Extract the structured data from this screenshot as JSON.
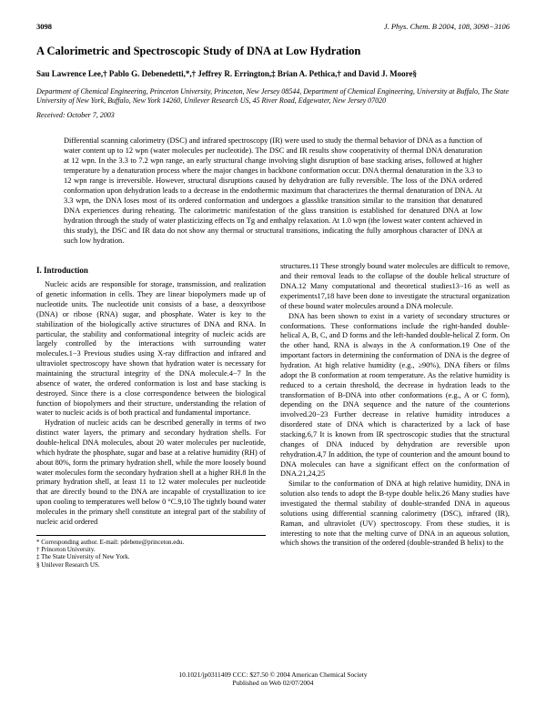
{
  "header": {
    "page_number": "3098",
    "journal_ref": "J. Phys. Chem. B 2004, 108, 3098−3106"
  },
  "title": "A Calorimetric and Spectroscopic Study of DNA at Low Hydration",
  "authors": "Sau Lawrence Lee,† Pablo G. Debenedetti,*,† Jeffrey R. Errington,‡ Brian A. Pethica,† and David J. Moore§",
  "affiliations": "Department of Chemical Engineering, Princeton University, Princeton, New Jersey 08544, Department of Chemical Engineering, University at Buffalo, The State University of New York, Buffalo, New York 14260, Unilever Research US, 45 River Road, Edgewater, New Jersey 07020",
  "received": "Received: October 7, 2003",
  "abstract": "Differential scanning calorimetry (DSC) and infrared spectroscopy (IR) were used to study the thermal behavior of DNA as a function of water content up to 12 wpn (water molecules per nucleotide). The DSC and IR results show cooperativity of thermal DNA denaturation at 12 wpn. In the 3.3 to 7.2 wpn range, an early structural change involving slight disruption of base stacking arises, followed at higher temperature by a denaturation process where the major changes in backbone conformation occur. DNA thermal denaturation in the 3.3 to 12 wpn range is irreversible. However, structural disruptions caused by dehydration are fully reversible. The loss of the DNA ordered conformation upon dehydration leads to a decrease in the endothermic maximum that characterizes the thermal denaturation of DNA. At 3.3 wpn, the DNA loses most of its ordered conformation and undergoes a glasslike transition similar to the transition that denatured DNA experiences during reheating. The calorimetric manifestation of the glass transition is established for denatured DNA at low hydration through the study of water plasticizing effects on Tg and enthalpy relaxation. At 1.0 wpn (the lowest water content achieved in this study), the DSC and IR data do not show any thermal or structural transitions, indicating the fully amorphous character of DNA at such low hydration.",
  "section_heading": "I. Introduction",
  "col1": {
    "p1": "Nucleic acids are responsible for storage, transmission, and realization of genetic information in cells. They are linear biopolymers made up of nucleotide units. The nucleotide unit consists of a base, a deoxyribose (DNA) or ribose (RNA) sugar, and phosphate. Water is key to the stabilization of the biologically active structures of DNA and RNA. In particular, the stability and conformational integrity of nucleic acids are largely controlled by the interactions with surrounding water molecules.1−3 Previous studies using X-ray diffraction and infrared and ultraviolet spectroscopy have shown that hydration water is necessary for maintaining the structural integrity of the DNA molecule.4−7 In the absence of water, the ordered conformation is lost and base stacking is destroyed. Since there is a close correspondence between the biological function of biopolymers and their structure, understanding the relation of water to nucleic acids is of both practical and fundamental importance.",
    "p2": "Hydration of nucleic acids can be described generally in terms of two distinct water layers, the primary and secondary hydration shells. For double-helical DNA molecules, about 20 water molecules per nucleotide, which hydrate the phosphate, sugar and base at a relative humidity (RH) of about 80%, form the primary hydration shell, while the more loosely bound water molecules form the secondary hydration shell at a higher RH.8 In the primary hydration shell, at least 11 to 12 water molecules per nucleotide that are directly bound to the DNA are incapable of crystallization to ice upon cooling to temperatures well below 0 °C.9,10 The tightly bound water molecules in the primary shell constitute an integral part of the stability of nucleic acid ordered"
  },
  "col2": {
    "p1": "structures.11 These strongly bound water molecules are difficult to remove, and their removal leads to the collapse of the double helical structure of DNA.12 Many computational and theoretical studies13−16 as well as experiments17,18 have been done to investigate the structural organization of these bound water molecules around a DNA molecule.",
    "p2": "DNA has been shown to exist in a variety of secondary structures or conformations. These conformations include the right-handed double-helical A, B, C, and D forms and the left-handed double-helical Z form. On the other hand, RNA is always in the A conformation.19 One of the important factors in determining the conformation of DNA is the degree of hydration. At high relative humidity (e.g., ≥90%), DNA fibers or films adopt the B conformation at room temperature. As the relative humidity is reduced to a certain threshold, the decrease in hydration leads to the transformation of B-DNA into other conformations (e.g., A or C form), depending on the DNA sequence and the nature of the counterions involved.20−23 Further decrease in relative humidity introduces a disordered state of DNA which is characterized by a lack of base stacking.6,7 It is known from IR spectroscopic studies that the structural changes of DNA induced by dehydration are reversible upon rehydration.4,7 In addition, the type of counterion and the amount bound to DNA molecules can have a significant effect on the conformation of DNA.21,24,25",
    "p3": "Similar to the conformation of DNA at high relative humidity, DNA in solution also tends to adopt the B-type double helix.26 Many studies have investigated the thermal stability of double-stranded DNA in aqueous solutions using differential scanning calorimetry (DSC), infrared (IR), Raman, and ultraviolet (UV) spectroscopy. From these studies, it is interesting to note that the melting curve of DNA in an aqueous solution, which shows the transition of the ordered (double-stranded B helix) to the"
  },
  "footnotes": {
    "f1": "* Corresponding author. E-mail: pdebene@princeton.edu.",
    "f2": "† Princeton University.",
    "f3": "‡ The State University of New York.",
    "f4": "§ Unilever Research US."
  },
  "footer": {
    "line1": "10.1021/jp0311409 CCC: $27.50    © 2004 American Chemical Society",
    "line2": "Published on Web 02/07/2004"
  }
}
